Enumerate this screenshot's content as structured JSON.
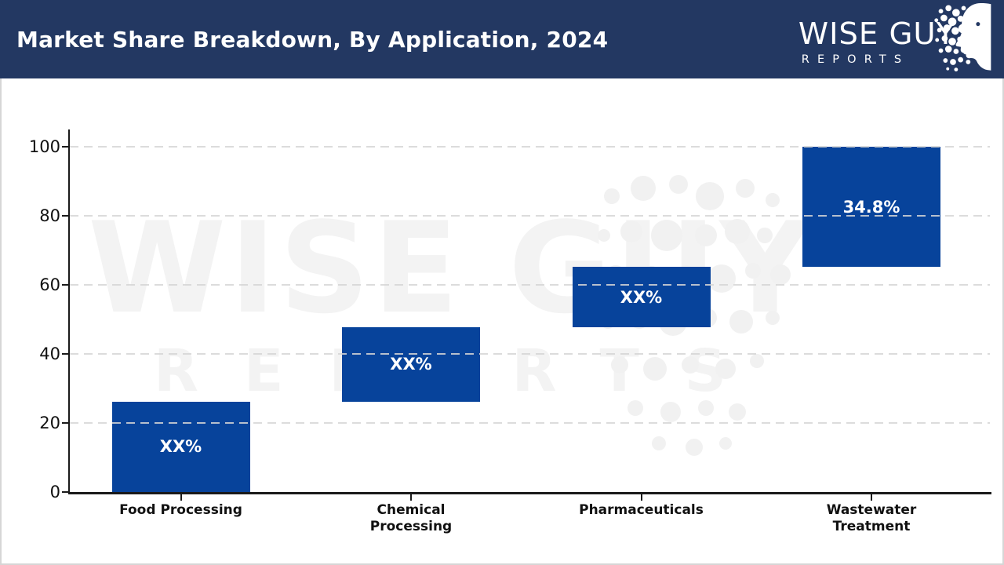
{
  "header": {
    "title": "Market Share Breakdown, By Application, 2024",
    "bg_color": "#233862",
    "title_color": "#ffffff",
    "logo": {
      "line1": "WISE GUY",
      "line2": "REPORTS"
    }
  },
  "watermark": {
    "line1": "WISE GUY",
    "line2": "REPORTS",
    "color": "#f3f3f3"
  },
  "colors": {
    "bar": "#07439b",
    "bar_label": "#ffffff",
    "axis": "#1a1a1a",
    "gridline": "#d9d9d9",
    "page_border": "#d6d6d6"
  },
  "chart_data": {
    "type": "bar",
    "subtype": "waterfall",
    "title": "Market Share Breakdown, By Application, 2024",
    "xlabel": "",
    "ylabel": "",
    "ylim": [
      0,
      105
    ],
    "yticks": [
      0,
      20,
      40,
      60,
      80,
      100
    ],
    "grid": "horizontal dashed",
    "legend": "none",
    "categories": [
      "Food Processing",
      "Chemical Processing",
      "Pharmaceuticals",
      "Wastewater Treatment"
    ],
    "bars": [
      {
        "category": "Food Processing",
        "lines": [
          "Food Processing"
        ],
        "start": 0,
        "end": 26.2,
        "value": 26.2,
        "data_label": "XX%"
      },
      {
        "category": "Chemical Processing",
        "lines": [
          "Chemical",
          "Processing"
        ],
        "start": 26.2,
        "end": 47.7,
        "value": 21.5,
        "data_label": "XX%"
      },
      {
        "category": "Pharmaceuticals",
        "lines": [
          "Pharmaceuticals"
        ],
        "start": 47.7,
        "end": 65.2,
        "value": 17.5,
        "data_label": "XX%"
      },
      {
        "category": "Wastewater Treatment",
        "lines": [
          "Wastewater",
          "Treatment"
        ],
        "start": 65.2,
        "end": 100,
        "value": 34.8,
        "data_label": "34.8%"
      }
    ]
  }
}
